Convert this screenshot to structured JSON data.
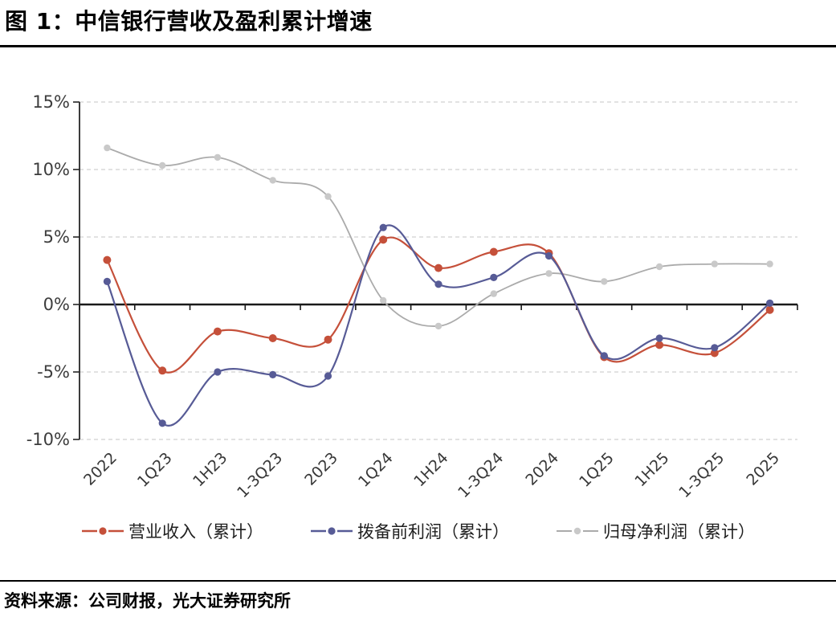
{
  "header": {
    "title": "图 1：中信银行营收及盈利累计增速"
  },
  "footer": {
    "source": "资料来源：公司财报，光大证券研究所"
  },
  "chart_data": {
    "type": "line",
    "title": "中信银行营收及盈利累计增速",
    "categories": [
      "2022",
      "1Q23",
      "1H23",
      "1-3Q23",
      "2023",
      "1Q24",
      "1H24",
      "1-3Q24",
      "2024",
      "1Q25",
      "1H25",
      "1-3Q25",
      "2025"
    ],
    "series": [
      {
        "key": "revenue",
        "name": "营业收入（累计）",
        "color": "#c5503a",
        "values": [
          3.3,
          -4.9,
          -2.0,
          -2.5,
          -2.6,
          4.8,
          2.7,
          3.9,
          3.8,
          -3.9,
          -3.0,
          -3.6,
          -0.4
        ]
      },
      {
        "key": "pre-provision-profit",
        "name": "拨备前利润（累计）",
        "color": "#575b96",
        "values": [
          1.7,
          -8.8,
          -5.0,
          -5.2,
          -5.3,
          5.7,
          1.5,
          2.0,
          3.6,
          -3.8,
          -2.5,
          -3.2,
          0.1
        ]
      },
      {
        "key": "net-profit",
        "name": "归母净利润（累计）",
        "color": "#ababab",
        "marker_color": "#c9c9c9",
        "values": [
          11.6,
          10.3,
          10.9,
          9.2,
          8.0,
          0.3,
          -1.6,
          0.8,
          2.3,
          1.7,
          2.8,
          3.0,
          3.0
        ]
      }
    ],
    "unit": "%",
    "xlabel": "",
    "ylabel": "",
    "ylim": [
      -10,
      15
    ],
    "ytick_step": 5,
    "yticks": [
      {
        "label": "15%",
        "value": 15
      },
      {
        "label": "10%",
        "value": 10
      },
      {
        "label": "5%",
        "value": 5
      },
      {
        "label": "0%",
        "value": 0
      },
      {
        "label": "-5%",
        "value": -5
      },
      {
        "label": "-10%",
        "value": -10
      }
    ],
    "grid": "horizontal-dashed",
    "legend_position": "bottom",
    "line_style": "smooth-with-circle-markers"
  }
}
